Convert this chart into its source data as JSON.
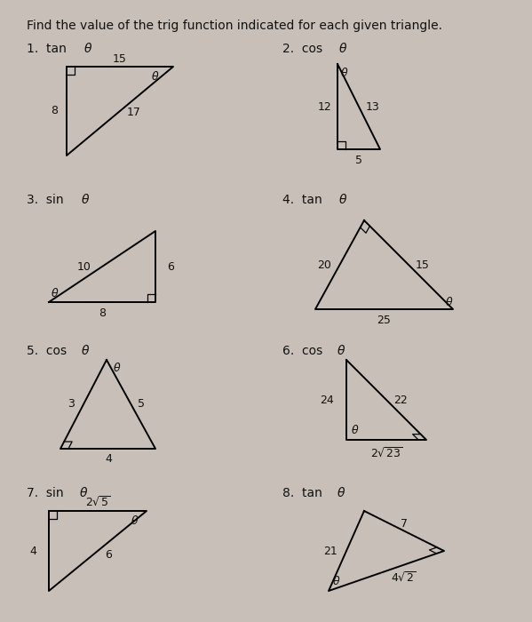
{
  "title": "Find the value of the trig function indicated for each given triangle.",
  "bg_color": "#c8c0b8",
  "text_color": "#1a1a1a",
  "problems": [
    {
      "num": "1",
      "func": "tan θ"
    },
    {
      "num": "2",
      "func": "cos θ"
    },
    {
      "num": "3",
      "func": "sin θ"
    },
    {
      "num": "4",
      "func": "tan θ"
    },
    {
      "num": "5",
      "func": "cos θ"
    },
    {
      "num": "6",
      "func": "cos θ"
    },
    {
      "num": "7",
      "func": "sin θ"
    },
    {
      "num": "8",
      "func": "tan θ"
    }
  ]
}
